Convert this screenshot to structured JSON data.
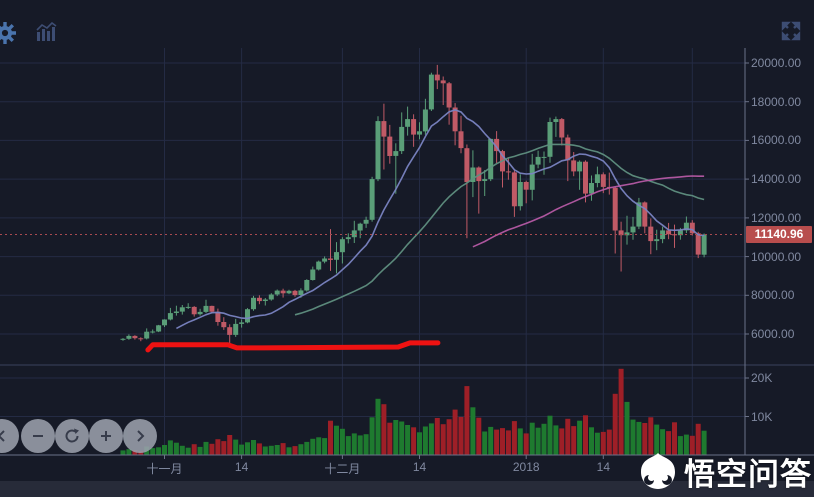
{
  "toolbar": {
    "icons": [
      {
        "icon": "gear",
        "name": "settings"
      },
      {
        "icon": "chart-stats",
        "name": "indicators"
      }
    ],
    "top_right": {
      "icon": "fullscreen"
    }
  },
  "nav_buttons": [
    {
      "icon": "chevron-left",
      "name": "pan-left"
    },
    {
      "icon": "minus",
      "name": "zoom-out"
    },
    {
      "icon": "reset-arrow",
      "name": "reset-view"
    },
    {
      "icon": "plus",
      "name": "zoom-in"
    },
    {
      "icon": "chevron-right",
      "name": "pan-right"
    }
  ],
  "watermark": {
    "text": "悟空问答"
  },
  "price_scale": {
    "last_price_label": "11140.96"
  },
  "colors": {
    "background": "#161a27",
    "grid": "#242b44",
    "axis_line": "#6b7288",
    "axis_text": "#8089a0",
    "candle_up": "#5a9e78",
    "candle_down": "#c05a66",
    "volume_up": "#1e7a2f",
    "volume_down": "#9e1f27",
    "last_price_line": "#a84a50",
    "badge_bg": "#b84d4d",
    "annotation_red": "#ee1212",
    "separator": "#39415c"
  },
  "chart_data": {
    "type": "candlestick",
    "title": "",
    "grid": true,
    "last_price": 11140.96,
    "last_price_label": "11140.96",
    "y_axis": {
      "side": "right",
      "range": [
        6000,
        20000
      ],
      "ticks": [
        20000,
        18000,
        16000,
        14000,
        12000,
        10000,
        8000,
        6000
      ],
      "tick_format": "0.00"
    },
    "volume_axis": {
      "ticks": [
        {
          "value": 20,
          "label": "20K"
        },
        {
          "value": 10,
          "label": "10K"
        }
      ],
      "unit": "K"
    },
    "x_axis": {
      "ticks": [
        {
          "index": 7,
          "label": "十一月"
        },
        {
          "index": 20,
          "label": "14"
        },
        {
          "index": 37,
          "label": "十二月"
        },
        {
          "index": 50,
          "label": "14"
        },
        {
          "index": 68,
          "label": "2018"
        },
        {
          "index": 81,
          "label": "14"
        },
        {
          "index": 96,
          "label": ""
        }
      ]
    },
    "moving_averages": [
      {
        "name": "MA10",
        "period": 10,
        "color": "#7a84c2"
      },
      {
        "name": "MA30",
        "period": 30,
        "color": "#5f8f80"
      },
      {
        "name": "MA60",
        "period": 60,
        "color": "#b55aa4"
      }
    ],
    "annotation_line": {
      "description": "hand-drawn red support line",
      "color": "#ee1212",
      "points_index_price": [
        [
          4.2,
          5180
        ],
        [
          5,
          5440
        ],
        [
          17.7,
          5440
        ],
        [
          19.2,
          5280
        ],
        [
          23.4,
          5280
        ],
        [
          46.4,
          5330
        ],
        [
          48.4,
          5540
        ],
        [
          53.1,
          5540
        ]
      ]
    },
    "candles_ohlcv": [
      [
        5730,
        5790,
        5650,
        5750,
        1.2
      ],
      [
        5750,
        5980,
        5700,
        5900,
        1.5
      ],
      [
        5900,
        5940,
        5710,
        5780,
        1.3
      ],
      [
        5780,
        5830,
        5630,
        5770,
        1.0
      ],
      [
        5770,
        6290,
        5720,
        6120,
        2.2
      ],
      [
        6120,
        6230,
        6030,
        6130,
        1.8
      ],
      [
        6130,
        6470,
        6100,
        6450,
        2.0
      ],
      [
        6450,
        6760,
        6360,
        6750,
        2.6
      ],
      [
        6750,
        7350,
        6700,
        7080,
        3.8
      ],
      [
        7080,
        7460,
        6950,
        7160,
        3.2
      ],
      [
        7160,
        7500,
        7000,
        7380,
        2.4
      ],
      [
        7380,
        7590,
        7290,
        7400,
        1.9
      ],
      [
        7400,
        7440,
        6900,
        7020,
        2.8
      ],
      [
        7020,
        7300,
        6950,
        7140,
        2.1
      ],
      [
        7140,
        7770,
        7080,
        7450,
        3.4
      ],
      [
        7450,
        7460,
        7070,
        7150,
        2.9
      ],
      [
        7150,
        7310,
        6430,
        6620,
        4.1
      ],
      [
        6620,
        6870,
        6210,
        6350,
        3.6
      ],
      [
        6350,
        6500,
        5510,
        5950,
        5.2
      ],
      [
        5950,
        6780,
        5850,
        6520,
        4.0
      ],
      [
        6520,
        6750,
        6330,
        6600,
        2.7
      ],
      [
        6600,
        7340,
        6560,
        7280,
        3.3
      ],
      [
        7280,
        7970,
        7200,
        7870,
        3.9
      ],
      [
        7870,
        8000,
        7540,
        7700,
        3.0
      ],
      [
        7700,
        7860,
        7470,
        7780,
        2.2
      ],
      [
        7780,
        8110,
        7720,
        8040,
        2.4
      ],
      [
        8040,
        8300,
        7960,
        8240,
        2.6
      ],
      [
        8240,
        8340,
        7880,
        8100,
        3.1
      ],
      [
        8100,
        8290,
        8060,
        8230,
        2.0
      ],
      [
        8230,
        8280,
        7920,
        8010,
        2.3
      ],
      [
        8010,
        8360,
        7870,
        8250,
        2.8
      ],
      [
        8250,
        8830,
        8190,
        8790,
        3.4
      ],
      [
        8790,
        9480,
        8760,
        9330,
        4.2
      ],
      [
        9330,
        9790,
        9280,
        9740,
        4.6
      ],
      [
        9740,
        10010,
        9650,
        9900,
        4.4
      ],
      [
        9900,
        11420,
        9260,
        9830,
        8.9
      ],
      [
        9830,
        10750,
        9130,
        10230,
        7.6
      ],
      [
        10230,
        11000,
        9640,
        10900,
        6.8
      ],
      [
        10900,
        11200,
        10680,
        11000,
        4.9
      ],
      [
        11000,
        11850,
        10700,
        11350,
        5.6
      ],
      [
        11350,
        11750,
        10950,
        11700,
        5.1
      ],
      [
        11700,
        12060,
        11480,
        11900,
        5.4
      ],
      [
        11900,
        14120,
        11800,
        14000,
        9.8
      ],
      [
        14000,
        17250,
        13900,
        17000,
        14.6
      ],
      [
        17000,
        17900,
        14500,
        16200,
        13.2
      ],
      [
        16200,
        16800,
        14800,
        15200,
        8.4
      ],
      [
        15200,
        15850,
        13250,
        15450,
        9.1
      ],
      [
        15450,
        17450,
        15300,
        16700,
        8.7
      ],
      [
        16700,
        17750,
        16250,
        17100,
        7.8
      ],
      [
        17100,
        17350,
        15670,
        16300,
        7.2
      ],
      [
        16300,
        16940,
        16060,
        16470,
        5.9
      ],
      [
        16470,
        18150,
        16290,
        17600,
        7.4
      ],
      [
        17600,
        19500,
        17520,
        19400,
        8.2
      ],
      [
        19400,
        19900,
        18650,
        19100,
        9.6
      ],
      [
        19100,
        19300,
        17830,
        18950,
        8.0
      ],
      [
        18950,
        19020,
        16810,
        17700,
        9.3
      ],
      [
        17700,
        17930,
        15750,
        16470,
        11.8
      ],
      [
        16470,
        17280,
        15340,
        15600,
        9.9
      ],
      [
        15600,
        15790,
        10950,
        13850,
        17.9
      ],
      [
        13850,
        15490,
        13070,
        14600,
        12.4
      ],
      [
        14600,
        14660,
        12220,
        13900,
        9.7
      ],
      [
        13900,
        14470,
        13130,
        14000,
        6.1
      ],
      [
        14000,
        16100,
        13900,
        16080,
        7.3
      ],
      [
        16080,
        16480,
        14830,
        15450,
        6.6
      ],
      [
        15450,
        15510,
        13570,
        14400,
        7.0
      ],
      [
        14400,
        15110,
        13970,
        14350,
        6.4
      ],
      [
        14350,
        14450,
        12050,
        12600,
        8.8
      ],
      [
        12600,
        14250,
        12380,
        13850,
        6.9
      ],
      [
        13850,
        13920,
        12750,
        13450,
        5.6
      ],
      [
        13450,
        15310,
        12900,
        14750,
        8.4
      ],
      [
        14750,
        15470,
        14560,
        15150,
        7.1
      ],
      [
        15150,
        15430,
        14230,
        15150,
        8.1
      ],
      [
        15150,
        17180,
        14850,
        16950,
        10.2
      ],
      [
        16950,
        17230,
        16180,
        17100,
        7.7
      ],
      [
        17100,
        17160,
        15740,
        16150,
        6.9
      ],
      [
        16150,
        16300,
        13900,
        14970,
        9.4
      ],
      [
        14970,
        15400,
        14150,
        14400,
        7.5
      ],
      [
        14400,
        14970,
        13450,
        14900,
        8.9
      ],
      [
        14900,
        14970,
        12800,
        13250,
        10.3
      ],
      [
        13250,
        14190,
        12880,
        13800,
        7.2
      ],
      [
        13800,
        14650,
        13580,
        14250,
        5.8
      ],
      [
        14250,
        14350,
        13280,
        13600,
        6.0
      ],
      [
        13600,
        14340,
        13200,
        13550,
        6.6
      ],
      [
        13550,
        13600,
        10160,
        11350,
        15.9
      ],
      [
        11350,
        11800,
        9230,
        11100,
        22.4
      ],
      [
        11100,
        12110,
        10620,
        11250,
        13.8
      ],
      [
        11250,
        12050,
        10870,
        11550,
        9.2
      ],
      [
        11550,
        13030,
        11420,
        12800,
        8.6
      ],
      [
        12800,
        12850,
        11200,
        11550,
        8.3
      ],
      [
        11550,
        11970,
        10120,
        10800,
        9.8
      ],
      [
        10800,
        11390,
        10330,
        10900,
        7.9
      ],
      [
        10900,
        11550,
        10690,
        11350,
        6.7
      ],
      [
        11350,
        11740,
        10900,
        11150,
        6.2
      ],
      [
        11150,
        11650,
        10450,
        11100,
        8.5
      ],
      [
        11100,
        11480,
        10870,
        11350,
        4.9
      ],
      [
        11350,
        12070,
        11220,
        11750,
        5.3
      ],
      [
        11750,
        11880,
        11090,
        11200,
        5.0
      ],
      [
        11200,
        11280,
        9920,
        10100,
        8.1
      ],
      [
        10100,
        11190,
        9960,
        11140.96,
        6.3
      ]
    ]
  }
}
